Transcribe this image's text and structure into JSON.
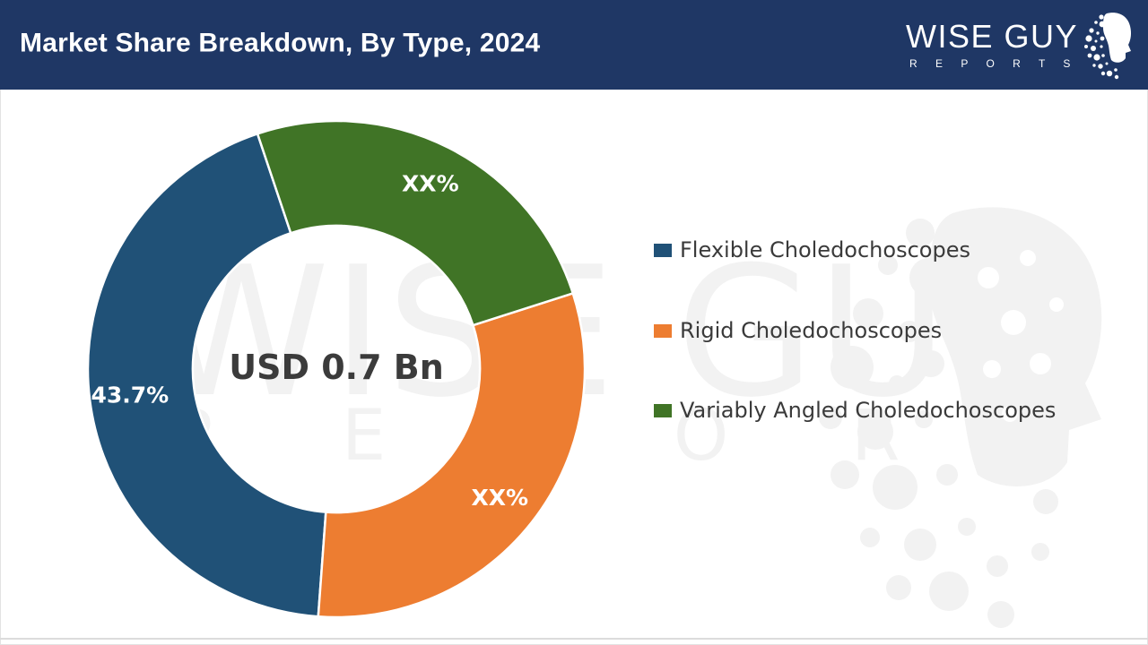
{
  "header": {
    "title": "Market Share Breakdown, By Type, 2024",
    "logo_line1": "WISE GUY",
    "logo_line2": "R E P O R T S"
  },
  "watermark": {
    "line1": "WISE GUY",
    "line2": "R E P O R T S"
  },
  "chart_data": {
    "type": "pie",
    "subtype": "donut",
    "title": "Market Share Breakdown, By Type, 2024",
    "center_text": "USD 0.7 Bn",
    "categories": [
      "Flexible Choledochoscopes",
      "Rigid Choledochoscopes",
      "Variably Angled Choledochoscopes"
    ],
    "values": [
      43.7,
      31.1,
      25.2
    ],
    "slice_labels": [
      "43.7%",
      "XX%",
      "XX%"
    ],
    "colors": [
      "#205177",
      "#ED7D31",
      "#407426"
    ],
    "start_angle_deg": 108.5,
    "direction": "counterclockwise",
    "inner_radius_ratio": 0.578,
    "legend_position": "right",
    "slice_label_color": "#ffffff"
  },
  "colors": {
    "header_bg": "#1f3765",
    "header_text": "#ffffff",
    "center_text": "#3b3b3b",
    "legend_text": "#3a3a3a",
    "watermark": "#f2f2f2"
  }
}
